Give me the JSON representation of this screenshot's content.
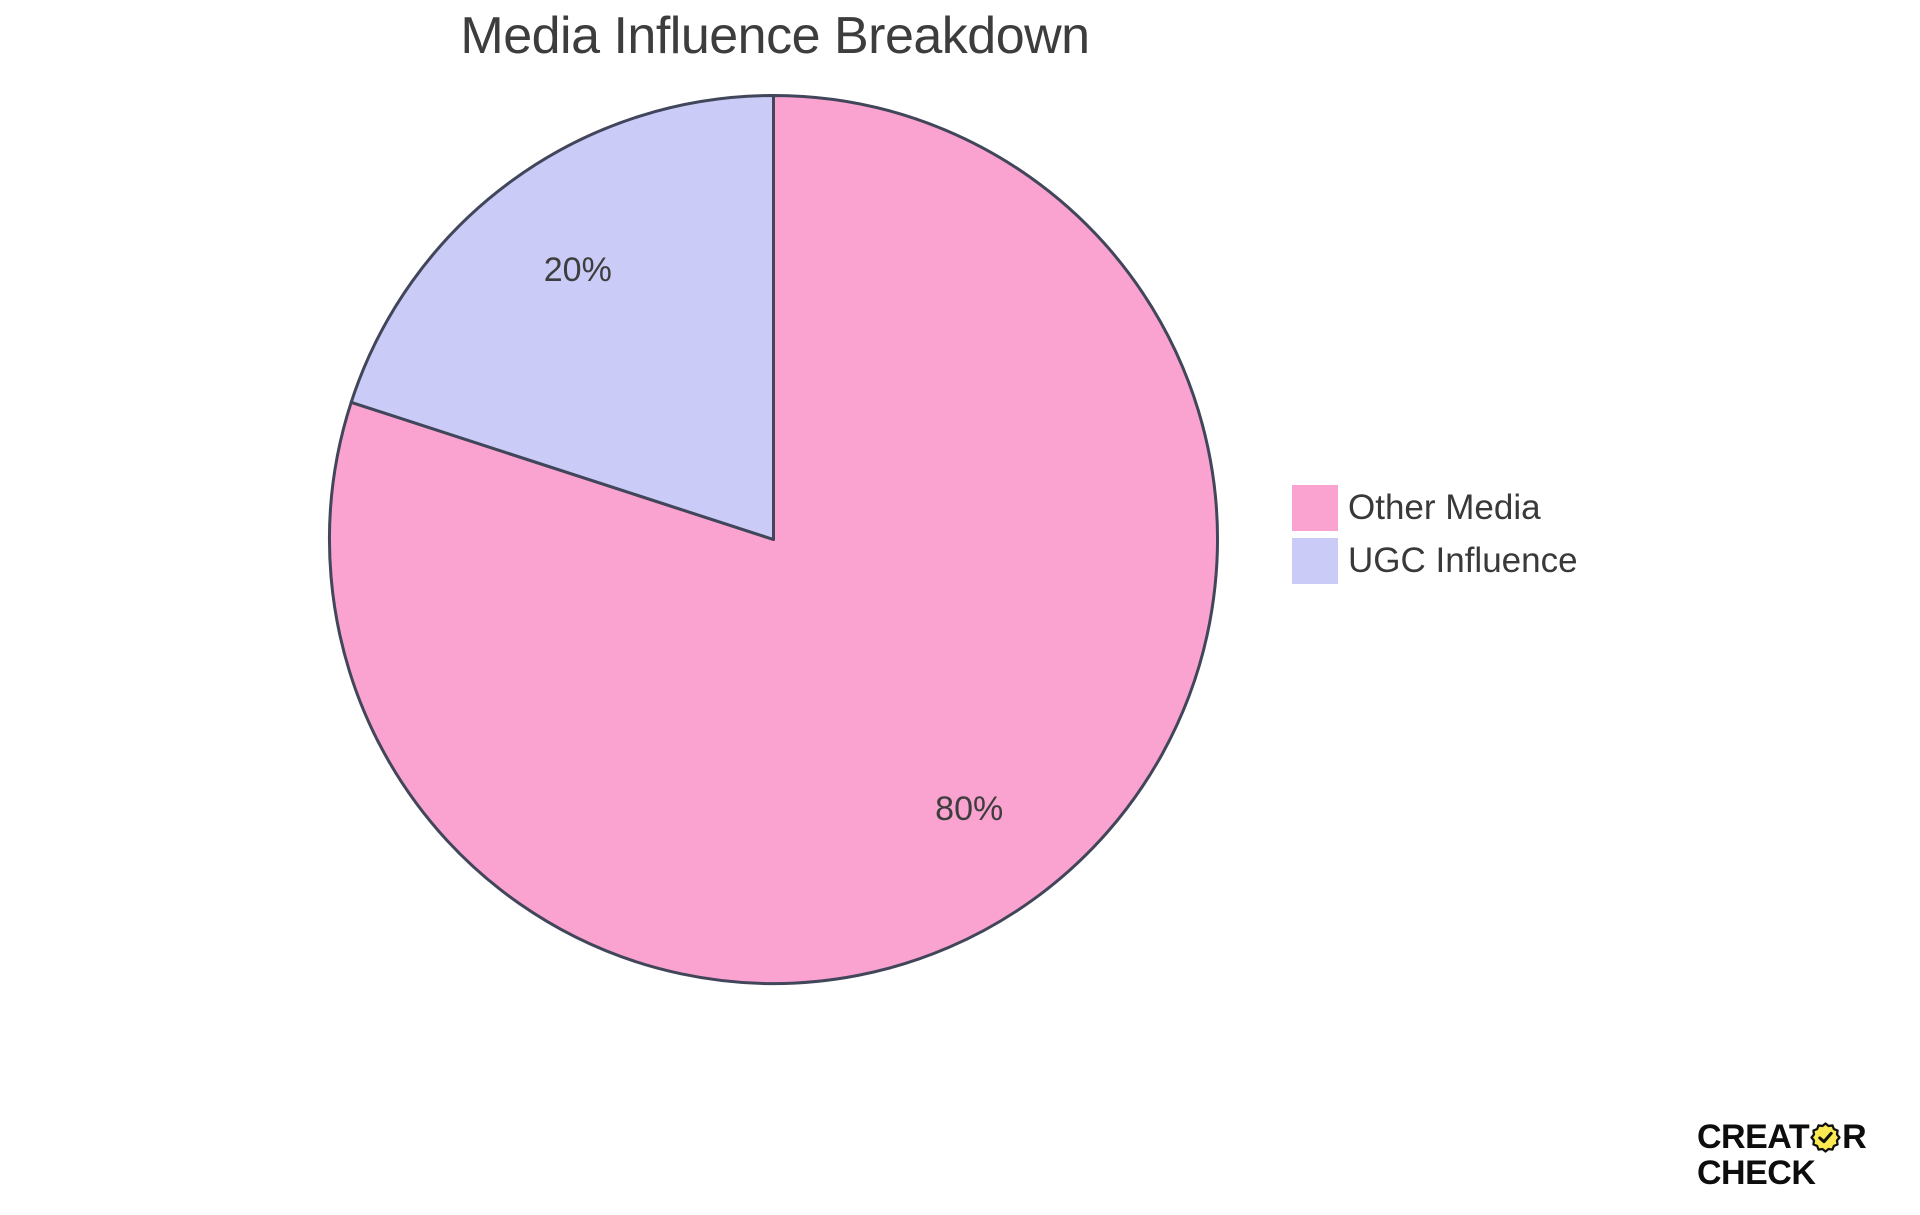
{
  "title": "Media Influence Breakdown",
  "chart_data": {
    "type": "pie",
    "title": "Media Influence Breakdown",
    "slices": [
      {
        "label": "Other Media",
        "value": 80,
        "display": "80%",
        "color": "#FAA3D0"
      },
      {
        "label": "UGC Influence",
        "value": 20,
        "display": "20%",
        "color": "#CACBF7"
      }
    ],
    "start_angle": "top",
    "direction": "clockwise",
    "labels_inside": true,
    "stroke_color": "#41465A",
    "label_color": "#3E3E3E",
    "background_color": "#FFFFFF",
    "legend_position": "right"
  },
  "watermark": {
    "brand_pre": "CREAT",
    "brand_post": "R",
    "brand_line2": "CHECK",
    "badge_icon": "verified-check-badge",
    "badge_fill": "#FBEA50",
    "badge_stroke": "#111111",
    "text_color": "#0D0D0D"
  }
}
